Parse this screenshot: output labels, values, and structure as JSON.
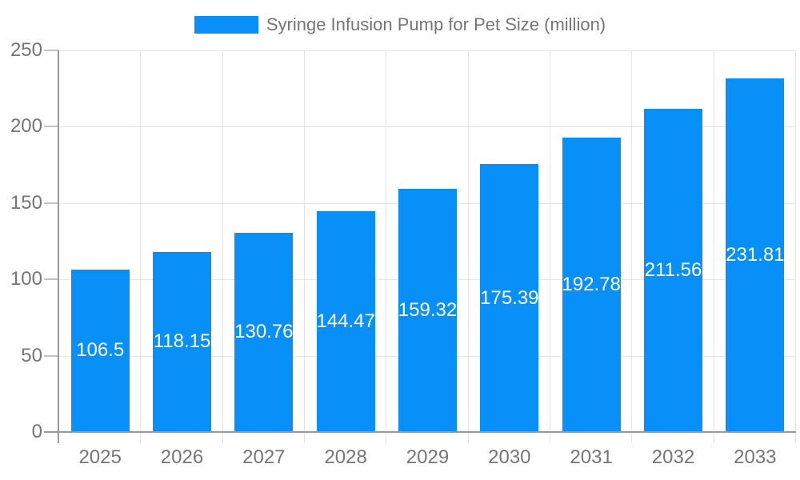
{
  "chart_data": {
    "type": "bar",
    "title": "Syringe Infusion Pump for Pet Size (million)",
    "categories": [
      "2025",
      "2026",
      "2027",
      "2028",
      "2029",
      "2030",
      "2031",
      "2032",
      "2033"
    ],
    "series": [
      {
        "name": "Syringe Infusion Pump for Pet Size (million)",
        "values": [
          106.5,
          118.15,
          130.76,
          144.47,
          159.32,
          175.39,
          192.78,
          211.56,
          231.81
        ]
      }
    ],
    "xlabel": "",
    "ylabel": "",
    "ylim": [
      0,
      250
    ],
    "yticks": [
      0,
      50,
      100,
      150,
      200,
      250
    ],
    "grid": true,
    "legend_position": "top",
    "value_labels": "inside-center",
    "colors": {
      "bar": "#0890f8",
      "value_label": "#ffffff",
      "axis_line": "#999999",
      "axis_tick": "#c4c4c4",
      "gridline": "#e4e4e4",
      "axis_text": "#757575"
    }
  }
}
